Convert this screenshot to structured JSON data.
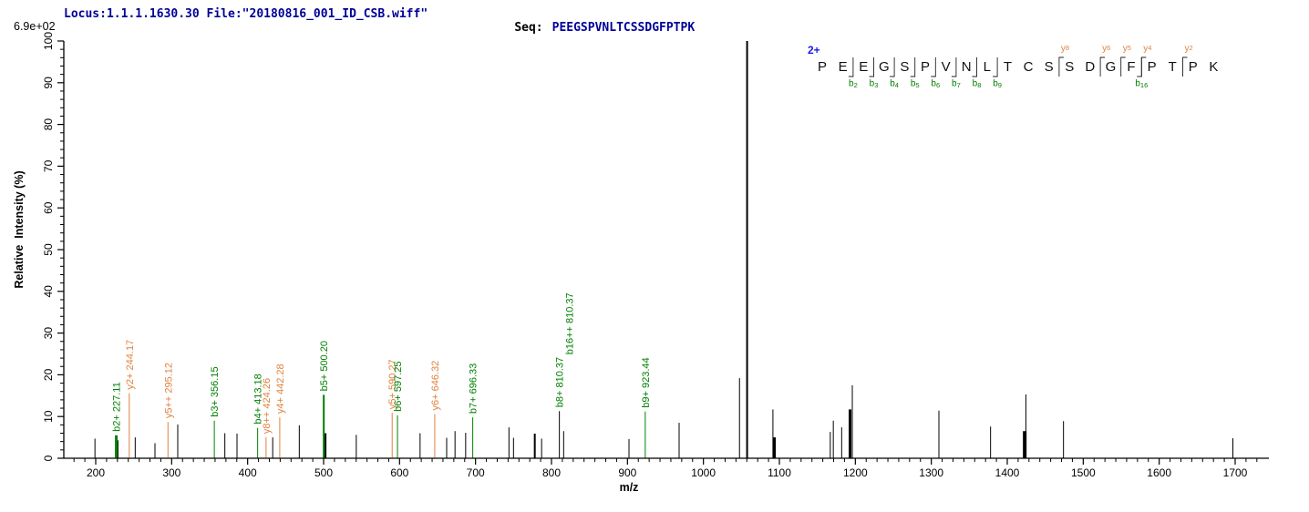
{
  "header": {
    "locus_file": "Locus:1.1.1.1630.30 File:\"20180816_001_ID_CSB.wiff\"",
    "seq_label": "Seq:",
    "sequence": "PEEGSPVNLTCSSDGFPTPK",
    "max_intensity": "6.9e+02"
  },
  "colors": {
    "header_navy": "#000099",
    "charge_blue": "#1a1aee",
    "b_ion_green": "#008000",
    "y_ion_orange": "#E0823E",
    "peak_black": "#000000",
    "axis_black": "#000000"
  },
  "peptide": {
    "charge": "2+",
    "residues": [
      "P",
      "E",
      "E",
      "G",
      "S",
      "P",
      "V",
      "N",
      "L",
      "T",
      "C",
      "S",
      "S",
      "D",
      "G",
      "F",
      "P",
      "T",
      "P",
      "K"
    ],
    "b_markers": [
      {
        "base": "b",
        "sub": "2",
        "after": 2
      },
      {
        "base": "b",
        "sub": "3",
        "after": 3
      },
      {
        "base": "b",
        "sub": "4",
        "after": 4
      },
      {
        "base": "b",
        "sub": "5",
        "after": 5
      },
      {
        "base": "b",
        "sub": "6",
        "after": 6
      },
      {
        "base": "b",
        "sub": "7",
        "after": 7
      },
      {
        "base": "b",
        "sub": "8",
        "after": 8
      },
      {
        "base": "b",
        "sub": "9",
        "after": 9
      },
      {
        "base": "b",
        "sub": "16",
        "after": 16
      }
    ],
    "y_markers": [
      {
        "base": "y",
        "sub": "8",
        "after": 12
      },
      {
        "base": "y",
        "sub": "6",
        "after": 14
      },
      {
        "base": "y",
        "sub": "5",
        "after": 15
      },
      {
        "base": "y",
        "sub": "4",
        "after": 16
      },
      {
        "base": "y",
        "sub": "2",
        "after": 18
      }
    ]
  },
  "chart_data": {
    "type": "bar",
    "subtype": "centroided MS/MS spectrum (stick plot)",
    "title": "",
    "xlabel": "m/z",
    "ylabel": "Relative  Intensity (%)",
    "xlim": [
      158,
      1745
    ],
    "ylim": [
      0,
      100
    ],
    "grid": false,
    "x_ticks": [
      200,
      300,
      400,
      500,
      600,
      700,
      800,
      900,
      1000,
      1100,
      1200,
      1300,
      1400,
      1500,
      1600,
      1700
    ],
    "y_ticks": [
      0,
      10,
      20,
      30,
      40,
      50,
      60,
      70,
      80,
      90,
      100
    ],
    "base_peak_absolute_intensity": "6.9e+02",
    "annotated_peaks": [
      {
        "mz": 227.11,
        "intensity": 5.5,
        "label": "b2+ 227.11",
        "ion": "b",
        "width": 3
      },
      {
        "mz": 244.17,
        "intensity": 15.6,
        "label": "y2+ 244.17",
        "ion": "y",
        "width": 1
      },
      {
        "mz": 295.12,
        "intensity": 8.7,
        "label": "y5++ 295.12",
        "ion": "y",
        "width": 1
      },
      {
        "mz": 356.15,
        "intensity": 9.0,
        "label": "b3+ 356.15",
        "ion": "b",
        "width": 1
      },
      {
        "mz": 413.18,
        "intensity": 7.3,
        "label": "b4+ 413.18",
        "ion": "b",
        "width": 1
      },
      {
        "mz": 424.26,
        "intensity": 5.0,
        "label": "y8++ 424.26",
        "ion": "y",
        "width": 1
      },
      {
        "mz": 442.28,
        "intensity": 9.8,
        "label": "y4+ 442.28",
        "ion": "y",
        "width": 1
      },
      {
        "mz": 500.2,
        "intensity": 15.2,
        "label": "b5+ 500.20",
        "ion": "b",
        "width": 2
      },
      {
        "mz": 590.27,
        "intensity": 10.9,
        "label": "y5+ 590.27",
        "ion": "y",
        "width": 1
      },
      {
        "mz": 597.25,
        "intensity": 10.3,
        "label": "b6+ 597.25",
        "ion": "b",
        "width": 1
      },
      {
        "mz": 646.32,
        "intensity": 10.6,
        "label": "y6+ 646.32",
        "ion": "y",
        "width": 1
      },
      {
        "mz": 696.33,
        "intensity": 9.8,
        "label": "b7+ 696.33",
        "ion": "b",
        "width": 1
      },
      {
        "mz": 810.37,
        "intensity": 11.3,
        "label": "b8+ 810.37",
        "ion": "b",
        "width": 1,
        "peak_color": "#000000"
      },
      {
        "mz": 810.37,
        "intensity": 11.3,
        "label": "b16++ 810.37",
        "ion": "b",
        "width": 0,
        "label_dx": 11,
        "label_dy": -58
      },
      {
        "mz": 923.44,
        "intensity": 11.2,
        "label": "b9+ 923.44",
        "ion": "b",
        "width": 1
      }
    ],
    "unannotated_peaks": [
      [
        199,
        4.7
      ],
      [
        229.3,
        4.3
      ],
      [
        252,
        5.0
      ],
      [
        278,
        3.6
      ],
      [
        308,
        8.1
      ],
      [
        370,
        6.0
      ],
      [
        386,
        5.9
      ],
      [
        433,
        5.0
      ],
      [
        468,
        7.9
      ],
      [
        502.5,
        6.0,
        2
      ],
      [
        543,
        5.6
      ],
      [
        627,
        6.0
      ],
      [
        662,
        4.9
      ],
      [
        673,
        6.5
      ],
      [
        687,
        6.1
      ],
      [
        744,
        7.4
      ],
      [
        750,
        4.9
      ],
      [
        778,
        5.9,
        2
      ],
      [
        787,
        4.7
      ],
      [
        816,
        6.5
      ],
      [
        902,
        4.6
      ],
      [
        968,
        8.5
      ],
      [
        1047.5,
        19.2
      ],
      [
        1057.5,
        100,
        2
      ],
      [
        1091.5,
        11.7
      ],
      [
        1093.5,
        5.0,
        3
      ],
      [
        1167,
        6.3
      ],
      [
        1171,
        9.0
      ],
      [
        1182,
        7.4
      ],
      [
        1193,
        11.7,
        3
      ],
      [
        1196,
        17.5
      ],
      [
        1310,
        11.4
      ],
      [
        1378,
        7.6
      ],
      [
        1423,
        6.5,
        4
      ],
      [
        1424.5,
        15.3
      ],
      [
        1474,
        8.9
      ],
      [
        1697,
        4.8
      ]
    ]
  }
}
